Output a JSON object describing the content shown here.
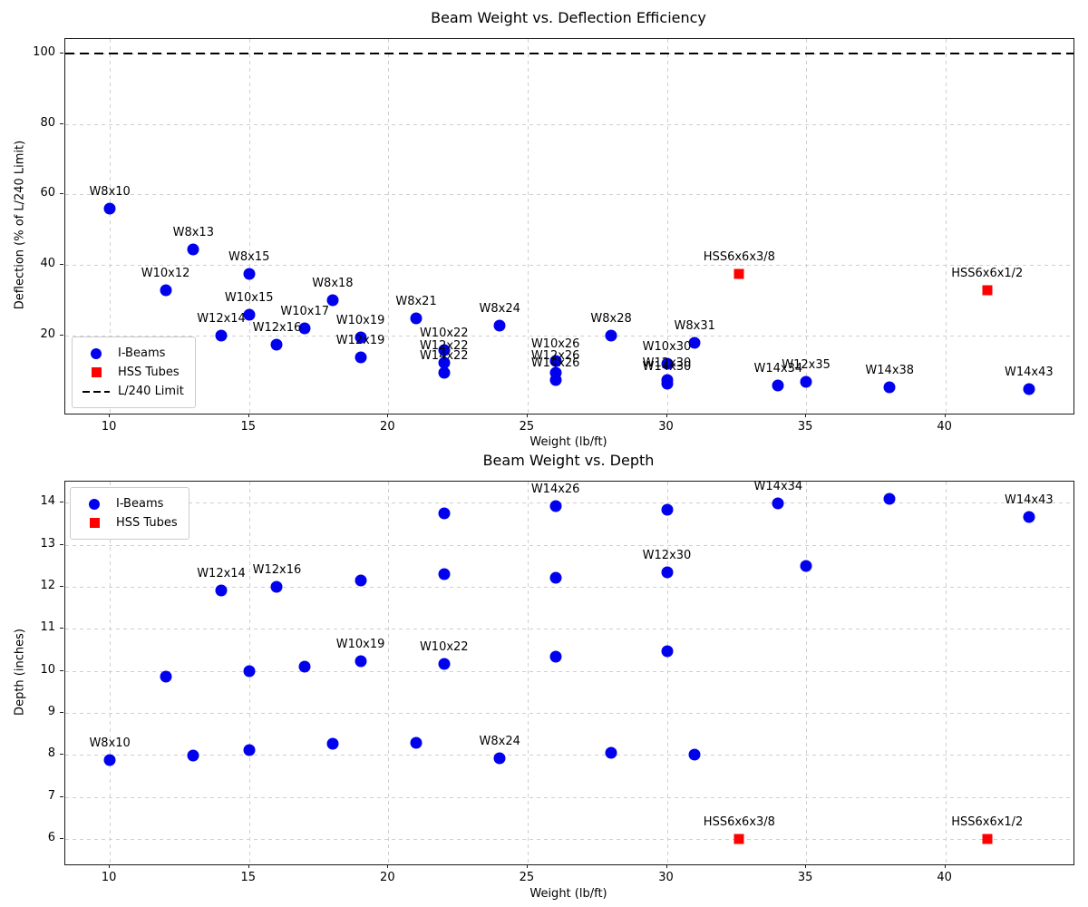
{
  "figure": {
    "background": "#ffffff",
    "blue": "#0000ee",
    "red": "#ff0000",
    "grid_color": "#cfcfcf"
  },
  "chart_data": [
    {
      "type": "scatter",
      "title": "Beam Weight vs. Deflection Efficiency",
      "xlabel": "Weight (lb/ft)",
      "ylabel": "Deflection (% of L/240 Limit)",
      "xlim": [
        8.4,
        44.6
      ],
      "ylim": [
        -2,
        104
      ],
      "xticks": [
        10,
        15,
        20,
        25,
        30,
        35,
        40
      ],
      "yticks": [
        20,
        40,
        60,
        80,
        100
      ],
      "grid": true,
      "legend_position": "lower left",
      "legend": [
        {
          "marker": "circle",
          "color": "#0000ee",
          "label": "I-Beams"
        },
        {
          "marker": "square",
          "color": "#ff0000",
          "label": "HSS Tubes"
        },
        {
          "marker": "dash",
          "color": "#000000",
          "label": "L/240 Limit"
        }
      ],
      "limit_line": {
        "y": 100,
        "label": "L/240 Limit",
        "color": "#000000",
        "style": "dashed"
      },
      "series": [
        {
          "name": "I-Beams",
          "marker": "circle",
          "color": "#0000ee",
          "points": [
            {
              "label": "W8x10",
              "x": 10,
              "y": 56,
              "annotated": true
            },
            {
              "label": "W10x12",
              "x": 12,
              "y": 33,
              "annotated": true
            },
            {
              "label": "W8x13",
              "x": 13,
              "y": 44.5,
              "annotated": true
            },
            {
              "label": "W12x14",
              "x": 14,
              "y": 20,
              "annotated": true
            },
            {
              "label": "W8x15",
              "x": 15,
              "y": 37.5,
              "annotated": true
            },
            {
              "label": "W10x15",
              "x": 15,
              "y": 26,
              "annotated": true
            },
            {
              "label": "W12x16",
              "x": 16,
              "y": 17.5,
              "annotated": true
            },
            {
              "label": "W10x17",
              "x": 17,
              "y": 22,
              "annotated": true
            },
            {
              "label": "W8x18",
              "x": 18,
              "y": 30,
              "annotated": true
            },
            {
              "label": "W10x19",
              "x": 19,
              "y": 19.5,
              "annotated": true
            },
            {
              "label": "W12x19",
              "x": 19,
              "y": 14,
              "annotated": true
            },
            {
              "label": "W8x21",
              "x": 21,
              "y": 25,
              "annotated": true
            },
            {
              "label": "W10x22",
              "x": 22,
              "y": 16,
              "annotated": true
            },
            {
              "label": "W12x22",
              "x": 22,
              "y": 12.5,
              "annotated": true
            },
            {
              "label": "W14x22",
              "x": 22,
              "y": 9.5,
              "annotated": true
            },
            {
              "label": "W8x24",
              "x": 24,
              "y": 23,
              "annotated": true
            },
            {
              "label": "W10x26",
              "x": 26,
              "y": 13,
              "annotated": true
            },
            {
              "label": "W12x26",
              "x": 26,
              "y": 9.5,
              "annotated": true
            },
            {
              "label": "W14x26",
              "x": 26,
              "y": 7.5,
              "annotated": true
            },
            {
              "label": "W8x28",
              "x": 28,
              "y": 20,
              "annotated": true
            },
            {
              "label": "W10x30",
              "x": 30,
              "y": 12,
              "annotated": true
            },
            {
              "label": "W12x30",
              "x": 30,
              "y": 7.5,
              "annotated": true
            },
            {
              "label": "W14x30",
              "x": 30,
              "y": 6.5,
              "annotated": true
            },
            {
              "label": "W8x31",
              "x": 31,
              "y": 18,
              "annotated": true
            },
            {
              "label": "W14x34",
              "x": 34,
              "y": 6,
              "annotated": true
            },
            {
              "label": "W12x35",
              "x": 35,
              "y": 7,
              "annotated": true
            },
            {
              "label": "W14x38",
              "x": 38,
              "y": 5.5,
              "annotated": true
            },
            {
              "label": "W14x43",
              "x": 43,
              "y": 5,
              "annotated": true
            }
          ]
        },
        {
          "name": "HSS Tubes",
          "marker": "square",
          "color": "#ff0000",
          "points": [
            {
              "label": "HSS6x6x3/8",
              "x": 32.6,
              "y": 37.5,
              "annotated": true
            },
            {
              "label": "HSS6x6x1/2",
              "x": 41.5,
              "y": 33,
              "annotated": true
            }
          ]
        }
      ]
    },
    {
      "type": "scatter",
      "title": "Beam Weight vs. Depth",
      "xlabel": "Weight (lb/ft)",
      "ylabel": "Depth (inches)",
      "xlim": [
        8.4,
        44.6
      ],
      "ylim": [
        5.4,
        14.5
      ],
      "xticks": [
        10,
        15,
        20,
        25,
        30,
        35,
        40
      ],
      "yticks": [
        6,
        7,
        8,
        9,
        10,
        11,
        12,
        13,
        14
      ],
      "grid": true,
      "legend_position": "upper left",
      "legend": [
        {
          "marker": "circle",
          "color": "#0000ee",
          "label": "I-Beams"
        },
        {
          "marker": "square",
          "color": "#ff0000",
          "label": "HSS Tubes"
        }
      ],
      "series": [
        {
          "name": "I-Beams",
          "marker": "circle",
          "color": "#0000ee",
          "points": [
            {
              "label": "W8x10",
              "x": 10,
              "y": 7.89,
              "annotated": true
            },
            {
              "label": "W10x12",
              "x": 12,
              "y": 9.87,
              "annotated": false
            },
            {
              "label": "W8x13",
              "x": 13,
              "y": 7.99,
              "annotated": false
            },
            {
              "label": "W12x14",
              "x": 14,
              "y": 11.91,
              "annotated": true
            },
            {
              "label": "W8x15",
              "x": 15,
              "y": 8.11,
              "annotated": false
            },
            {
              "label": "W10x15",
              "x": 15,
              "y": 10.0,
              "annotated": false
            },
            {
              "label": "W12x16",
              "x": 16,
              "y": 12.0,
              "annotated": true
            },
            {
              "label": "W10x17",
              "x": 17,
              "y": 10.11,
              "annotated": false
            },
            {
              "label": "W8x18",
              "x": 18,
              "y": 8.26,
              "annotated": false
            },
            {
              "label": "W10x19",
              "x": 19,
              "y": 10.24,
              "annotated": true
            },
            {
              "label": "W12x19",
              "x": 19,
              "y": 12.16,
              "annotated": false
            },
            {
              "label": "W8x21",
              "x": 21,
              "y": 8.28,
              "annotated": false
            },
            {
              "label": "W10x22",
              "x": 22,
              "y": 10.17,
              "annotated": true
            },
            {
              "label": "W12x22",
              "x": 22,
              "y": 12.31,
              "annotated": false
            },
            {
              "label": "W14x22",
              "x": 22,
              "y": 13.74,
              "annotated": false
            },
            {
              "label": "W8x24",
              "x": 24,
              "y": 7.93,
              "annotated": true
            },
            {
              "label": "W10x26",
              "x": 26,
              "y": 10.33,
              "annotated": false
            },
            {
              "label": "W12x26",
              "x": 26,
              "y": 12.22,
              "annotated": false
            },
            {
              "label": "W14x26",
              "x": 26,
              "y": 13.91,
              "annotated": true
            },
            {
              "label": "W8x28",
              "x": 28,
              "y": 8.06,
              "annotated": false
            },
            {
              "label": "W10x30",
              "x": 30,
              "y": 10.47,
              "annotated": false
            },
            {
              "label": "W12x30",
              "x": 30,
              "y": 12.34,
              "annotated": true
            },
            {
              "label": "W14x30",
              "x": 30,
              "y": 13.84,
              "annotated": false
            },
            {
              "label": "W8x31",
              "x": 31,
              "y": 8.0,
              "annotated": false
            },
            {
              "label": "W14x34",
              "x": 34,
              "y": 13.98,
              "annotated": true
            },
            {
              "label": "W12x35",
              "x": 35,
              "y": 12.5,
              "annotated": false
            },
            {
              "label": "W14x38",
              "x": 38,
              "y": 14.1,
              "annotated": false
            },
            {
              "label": "W14x43",
              "x": 43,
              "y": 13.66,
              "annotated": true
            }
          ]
        },
        {
          "name": "HSS Tubes",
          "marker": "square",
          "color": "#ff0000",
          "points": [
            {
              "label": "HSS6x6x3/8",
              "x": 32.6,
              "y": 6.0,
              "annotated": true
            },
            {
              "label": "HSS6x6x1/2",
              "x": 41.5,
              "y": 6.0,
              "annotated": true
            }
          ]
        }
      ]
    }
  ]
}
